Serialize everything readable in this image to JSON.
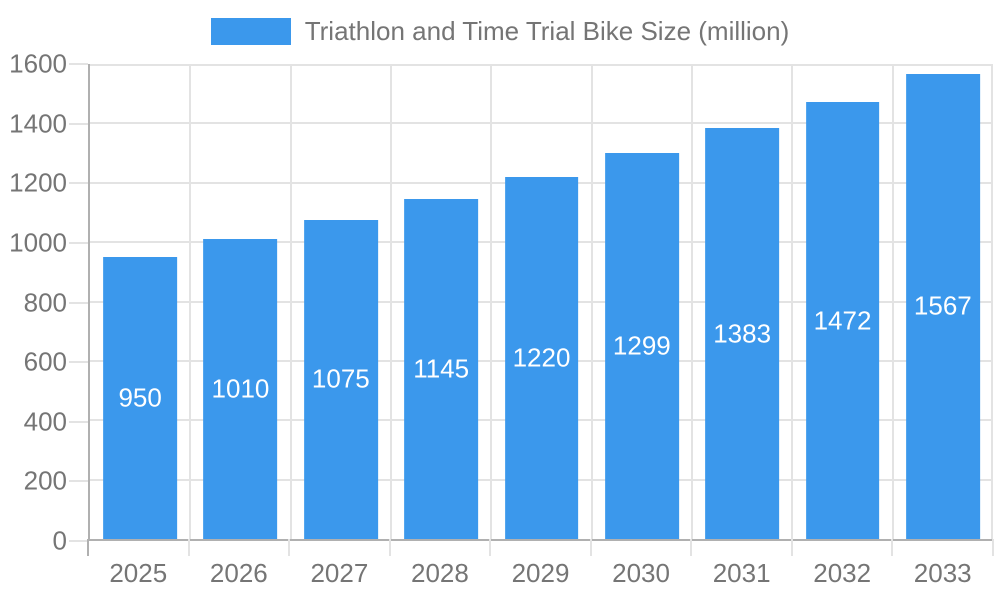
{
  "legend": {
    "label": "Triathlon and Time Trial Bike Size (million)"
  },
  "colors": {
    "bar": "#3b98ec",
    "grid": "#e3e3e3",
    "axis": "#b0b0b0",
    "text": "#757575",
    "value_label": "#ffffff",
    "background": "#ffffff"
  },
  "chart_data": {
    "type": "bar",
    "title": "Triathlon and Time Trial Bike Size (million)",
    "categories": [
      "2025",
      "2026",
      "2027",
      "2028",
      "2029",
      "2030",
      "2031",
      "2032",
      "2033"
    ],
    "values": [
      950,
      1010,
      1075,
      1145,
      1220,
      1299,
      1383,
      1472,
      1567
    ],
    "series_name": "Triathlon and Time Trial Bike Size (million)",
    "xlabel": "",
    "ylabel": "",
    "ylim": [
      0,
      1600
    ],
    "yticks": [
      0,
      200,
      400,
      600,
      800,
      1000,
      1200,
      1400,
      1600
    ],
    "grid": true,
    "legend_position": "top-center",
    "value_labels": "inside-middle",
    "bar_width_fraction": 0.735
  }
}
